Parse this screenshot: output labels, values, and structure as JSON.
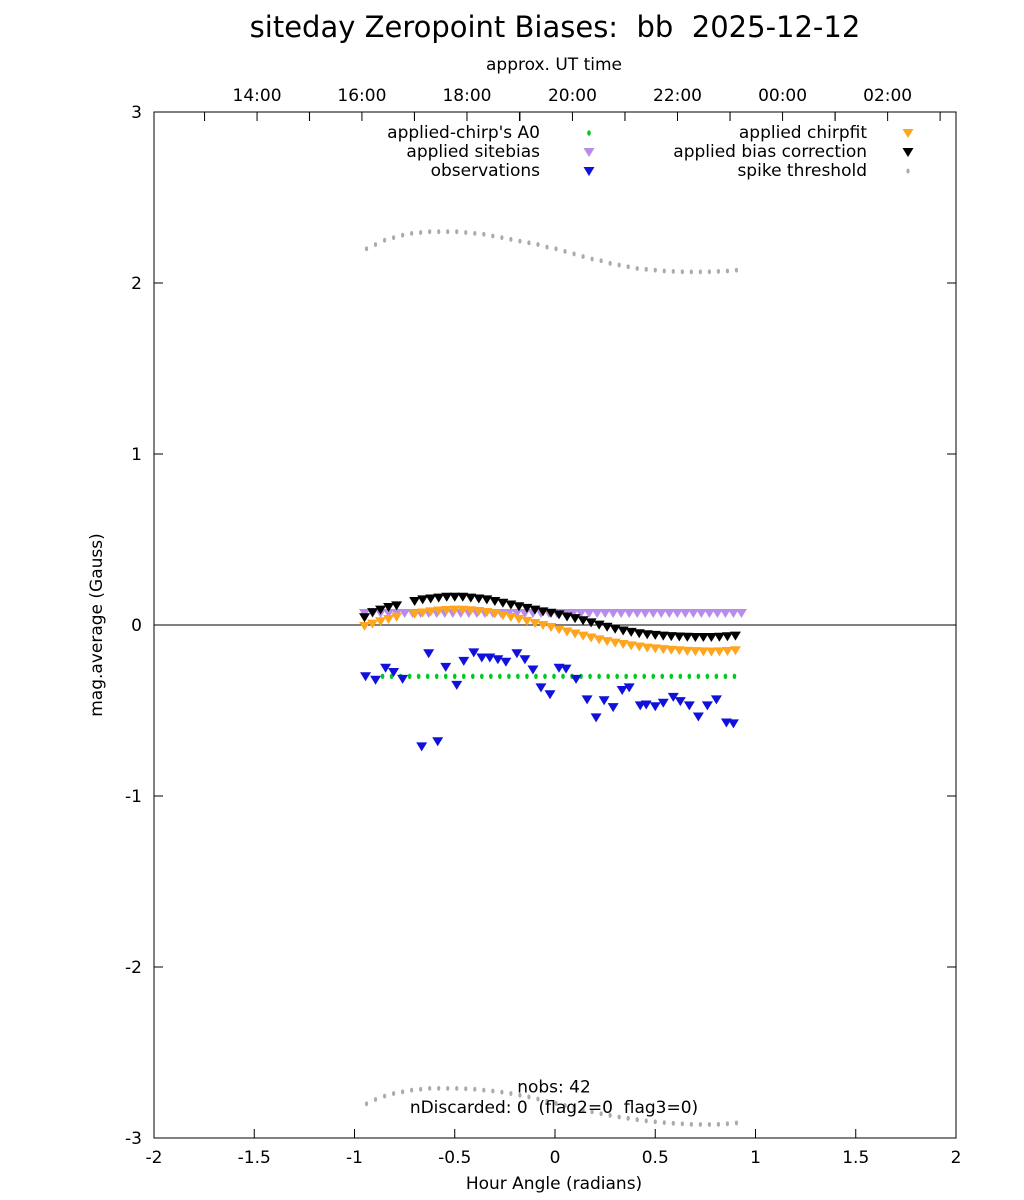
{
  "chart_data": {
    "type": "scatter",
    "title": "siteday Zeropoint Biases:  bb  2025-12-12",
    "xlabel": "Hour Angle (radians)",
    "ylabel": "mag.average (Gauss)",
    "xlim": [
      -2,
      2
    ],
    "ylim": [
      -3,
      3
    ],
    "grid": false,
    "x_tick_values": [
      -2,
      -1.5,
      -1,
      -0.5,
      0,
      0.5,
      1,
      1.5,
      2
    ],
    "x_tick_labels": [
      "-2",
      "-1.5",
      "-1",
      "-0.5",
      "0",
      "0.5",
      "1",
      "1.5",
      "2"
    ],
    "y_tick_values": [
      3,
      2,
      1,
      0,
      -1,
      -2,
      -3
    ],
    "y_tick_labels": [
      "3",
      "2",
      "1",
      "0",
      "-1",
      "-2",
      "-3"
    ],
    "top_axis": {
      "label": "approx. UT time",
      "tick_labels": [
        "14:00",
        "16:00",
        "18:00",
        "20:00",
        "22:00",
        "00:00",
        "02:00"
      ],
      "tick_positions": [
        -1.486,
        -0.963,
        -0.439,
        0.087,
        0.611,
        1.135,
        1.659
      ],
      "minor_step": 0.2618
    },
    "legend": {
      "position": "top-inside-two-columns",
      "items": [
        {
          "label": "applied-chirp's A0",
          "series": "a0"
        },
        {
          "label": "applied sitebias",
          "series": "sitebias"
        },
        {
          "label": "observations",
          "series": "observations"
        },
        {
          "label": "applied chirpfit",
          "series": "chirpfit"
        },
        {
          "label": "applied bias correction",
          "series": "biascorr"
        },
        {
          "label": "spike threshold",
          "series": "spike"
        }
      ]
    },
    "annotations": [
      {
        "text": "nobs: 42",
        "x": -0.005,
        "y": -2.7
      },
      {
        "text": "nDiscarded: 0  (flag2=0  flag3=0)",
        "x": -0.005,
        "y": -2.82
      }
    ],
    "series": [
      {
        "id": "a0",
        "name": "applied-chirp's A0",
        "marker": "dot",
        "color": "#00c81e",
        "flat": {
          "y": -0.3,
          "x_start": -0.86,
          "x_end": 0.91,
          "step": 0.045
        }
      },
      {
        "id": "sitebias",
        "name": "applied sitebias",
        "marker": "triangle-down",
        "color": "#b98ceb",
        "flat": {
          "y": 0.07,
          "x_start": -0.95,
          "x_end": 0.93,
          "step": 0.04
        }
      },
      {
        "id": "observations",
        "name": "observations",
        "marker": "triangle-down",
        "color": "#1111dd",
        "points": [
          [
            -0.945,
            -0.3
          ],
          [
            -0.895,
            -0.32
          ],
          [
            -0.845,
            -0.25
          ],
          [
            -0.805,
            -0.275
          ],
          [
            -0.76,
            -0.315
          ],
          [
            -0.665,
            -0.71
          ],
          [
            -0.63,
            -0.165
          ],
          [
            -0.585,
            -0.68
          ],
          [
            -0.545,
            -0.245
          ],
          [
            -0.49,
            -0.35
          ],
          [
            -0.455,
            -0.21
          ],
          [
            -0.405,
            -0.16
          ],
          [
            -0.365,
            -0.19
          ],
          [
            -0.325,
            -0.19
          ],
          [
            -0.285,
            -0.2
          ],
          [
            -0.245,
            -0.215
          ],
          [
            -0.19,
            -0.165
          ],
          [
            -0.15,
            -0.2
          ],
          [
            -0.11,
            -0.26
          ],
          [
            -0.07,
            -0.365
          ],
          [
            -0.025,
            -0.405
          ],
          [
            0.02,
            -0.25
          ],
          [
            0.055,
            -0.255
          ],
          [
            0.105,
            -0.315
          ],
          [
            0.16,
            -0.435
          ],
          [
            0.205,
            -0.54
          ],
          [
            0.245,
            -0.44
          ],
          [
            0.29,
            -0.48
          ],
          [
            0.335,
            -0.38
          ],
          [
            0.37,
            -0.365
          ],
          [
            0.425,
            -0.47
          ],
          [
            0.455,
            -0.465
          ],
          [
            0.5,
            -0.475
          ],
          [
            0.54,
            -0.455
          ],
          [
            0.59,
            -0.42
          ],
          [
            0.625,
            -0.445
          ],
          [
            0.67,
            -0.47
          ],
          [
            0.715,
            -0.535
          ],
          [
            0.76,
            -0.47
          ],
          [
            0.805,
            -0.435
          ],
          [
            0.855,
            -0.57
          ],
          [
            0.89,
            -0.575
          ]
        ]
      },
      {
        "id": "chirpfit",
        "name": "applied chirpfit",
        "marker": "triangle-down",
        "color": "#ffa51e",
        "points": [
          [
            -0.95,
            -0.005
          ],
          [
            -0.91,
            0.008
          ],
          [
            -0.87,
            0.022
          ],
          [
            -0.83,
            0.035
          ],
          [
            -0.79,
            0.048
          ],
          [
            -0.7,
            0.065
          ],
          [
            -0.66,
            0.073
          ],
          [
            -0.62,
            0.08
          ],
          [
            -0.58,
            0.085
          ],
          [
            -0.54,
            0.088
          ],
          [
            -0.5,
            0.09
          ],
          [
            -0.46,
            0.089
          ],
          [
            -0.42,
            0.086
          ],
          [
            -0.38,
            0.082
          ],
          [
            -0.34,
            0.076
          ],
          [
            -0.3,
            0.068
          ],
          [
            -0.26,
            0.058
          ],
          [
            -0.22,
            0.047
          ],
          [
            -0.18,
            0.036
          ],
          [
            -0.14,
            0.024
          ],
          [
            -0.1,
            0.012
          ],
          [
            -0.06,
            0.0
          ],
          [
            -0.02,
            -0.012
          ],
          [
            0.02,
            -0.025
          ],
          [
            0.06,
            -0.038
          ],
          [
            0.1,
            -0.05
          ],
          [
            0.14,
            -0.062
          ],
          [
            0.18,
            -0.073
          ],
          [
            0.22,
            -0.084
          ],
          [
            0.26,
            -0.094
          ],
          [
            0.3,
            -0.103
          ],
          [
            0.34,
            -0.111
          ],
          [
            0.38,
            -0.119
          ],
          [
            0.42,
            -0.126
          ],
          [
            0.46,
            -0.132
          ],
          [
            0.5,
            -0.137
          ],
          [
            0.54,
            -0.141
          ],
          [
            0.58,
            -0.145
          ],
          [
            0.62,
            -0.148
          ],
          [
            0.66,
            -0.151
          ],
          [
            0.7,
            -0.153
          ],
          [
            0.74,
            -0.154
          ],
          [
            0.78,
            -0.155
          ],
          [
            0.82,
            -0.154
          ],
          [
            0.86,
            -0.152
          ],
          [
            0.9,
            -0.148
          ]
        ]
      },
      {
        "id": "biascorr",
        "name": "applied bias correction",
        "marker": "triangle-down",
        "color": "#000000",
        "points": [
          [
            -0.95,
            0.045
          ],
          [
            -0.91,
            0.075
          ],
          [
            -0.87,
            0.09
          ],
          [
            -0.83,
            0.105
          ],
          [
            -0.79,
            0.115
          ],
          [
            -0.7,
            0.14
          ],
          [
            -0.66,
            0.15
          ],
          [
            -0.62,
            0.155
          ],
          [
            -0.58,
            0.16
          ],
          [
            -0.54,
            0.165
          ],
          [
            -0.5,
            0.165
          ],
          [
            -0.46,
            0.165
          ],
          [
            -0.42,
            0.16
          ],
          [
            -0.38,
            0.155
          ],
          [
            -0.34,
            0.15
          ],
          [
            -0.3,
            0.14
          ],
          [
            -0.26,
            0.13
          ],
          [
            -0.22,
            0.12
          ],
          [
            -0.18,
            0.11
          ],
          [
            -0.14,
            0.1
          ],
          [
            -0.1,
            0.09
          ],
          [
            -0.06,
            0.08
          ],
          [
            -0.02,
            0.072
          ],
          [
            0.02,
            0.062
          ],
          [
            0.06,
            0.05
          ],
          [
            0.1,
            0.04
          ],
          [
            0.14,
            0.028
          ],
          [
            0.18,
            0.015
          ],
          [
            0.22,
            0.002
          ],
          [
            0.26,
            -0.01
          ],
          [
            0.3,
            -0.022
          ],
          [
            0.34,
            -0.032
          ],
          [
            0.38,
            -0.04
          ],
          [
            0.42,
            -0.048
          ],
          [
            0.46,
            -0.054
          ],
          [
            0.5,
            -0.058
          ],
          [
            0.54,
            -0.062
          ],
          [
            0.58,
            -0.065
          ],
          [
            0.62,
            -0.067
          ],
          [
            0.66,
            -0.069
          ],
          [
            0.7,
            -0.07
          ],
          [
            0.74,
            -0.07
          ],
          [
            0.78,
            -0.07
          ],
          [
            0.82,
            -0.069
          ],
          [
            0.86,
            -0.066
          ],
          [
            0.9,
            -0.062
          ]
        ]
      },
      {
        "id": "spike",
        "name": "spike threshold",
        "marker": "small-dot",
        "color": "#ababab",
        "points": [
          [
            -0.94,
            2.2
          ],
          [
            -0.895,
            2.225
          ],
          [
            -0.85,
            2.25
          ],
          [
            -0.805,
            2.265
          ],
          [
            -0.76,
            2.28
          ],
          [
            -0.715,
            2.29
          ],
          [
            -0.67,
            2.295
          ],
          [
            -0.625,
            2.3
          ],
          [
            -0.58,
            2.3
          ],
          [
            -0.535,
            2.3
          ],
          [
            -0.49,
            2.3
          ],
          [
            -0.445,
            2.295
          ],
          [
            -0.4,
            2.29
          ],
          [
            -0.355,
            2.285
          ],
          [
            -0.31,
            2.275
          ],
          [
            -0.265,
            2.265
          ],
          [
            -0.22,
            2.255
          ],
          [
            -0.175,
            2.245
          ],
          [
            -0.13,
            2.235
          ],
          [
            -0.085,
            2.225
          ],
          [
            -0.04,
            2.21
          ],
          [
            0.005,
            2.2
          ],
          [
            0.05,
            2.185
          ],
          [
            0.095,
            2.17
          ],
          [
            0.14,
            2.155
          ],
          [
            0.185,
            2.14
          ],
          [
            0.23,
            2.13
          ],
          [
            0.275,
            2.115
          ],
          [
            0.32,
            2.105
          ],
          [
            0.365,
            2.095
          ],
          [
            0.41,
            2.085
          ],
          [
            0.455,
            2.08
          ],
          [
            0.5,
            2.075
          ],
          [
            0.545,
            2.07
          ],
          [
            0.59,
            2.068
          ],
          [
            0.635,
            2.066
          ],
          [
            0.68,
            2.065
          ],
          [
            0.725,
            2.065
          ],
          [
            0.77,
            2.066
          ],
          [
            0.815,
            2.068
          ],
          [
            0.86,
            2.07
          ],
          [
            0.905,
            2.075
          ],
          [
            -0.94,
            -2.8
          ],
          [
            -0.895,
            -2.775
          ],
          [
            -0.85,
            -2.755
          ],
          [
            -0.805,
            -2.74
          ],
          [
            -0.76,
            -2.73
          ],
          [
            -0.715,
            -2.72
          ],
          [
            -0.67,
            -2.715
          ],
          [
            -0.625,
            -2.71
          ],
          [
            -0.58,
            -2.71
          ],
          [
            -0.535,
            -2.71
          ],
          [
            -0.49,
            -2.71
          ],
          [
            -0.445,
            -2.712
          ],
          [
            -0.4,
            -2.715
          ],
          [
            -0.355,
            -2.72
          ],
          [
            -0.31,
            -2.725
          ],
          [
            -0.265,
            -2.732
          ],
          [
            -0.22,
            -2.74
          ],
          [
            -0.175,
            -2.75
          ],
          [
            -0.13,
            -2.76
          ],
          [
            -0.085,
            -2.772
          ],
          [
            -0.04,
            -2.785
          ],
          [
            0.005,
            -2.798
          ],
          [
            0.05,
            -2.81
          ],
          [
            0.095,
            -2.822
          ],
          [
            0.14,
            -2.835
          ],
          [
            0.185,
            -2.847
          ],
          [
            0.23,
            -2.858
          ],
          [
            0.275,
            -2.868
          ],
          [
            0.32,
            -2.877
          ],
          [
            0.365,
            -2.885
          ],
          [
            0.41,
            -2.893
          ],
          [
            0.455,
            -2.9
          ],
          [
            0.5,
            -2.905
          ],
          [
            0.545,
            -2.91
          ],
          [
            0.59,
            -2.914
          ],
          [
            0.635,
            -2.917
          ],
          [
            0.68,
            -2.92
          ],
          [
            0.725,
            -2.921
          ],
          [
            0.77,
            -2.921
          ],
          [
            0.815,
            -2.92
          ],
          [
            0.86,
            -2.917
          ],
          [
            0.905,
            -2.912
          ]
        ]
      }
    ]
  }
}
